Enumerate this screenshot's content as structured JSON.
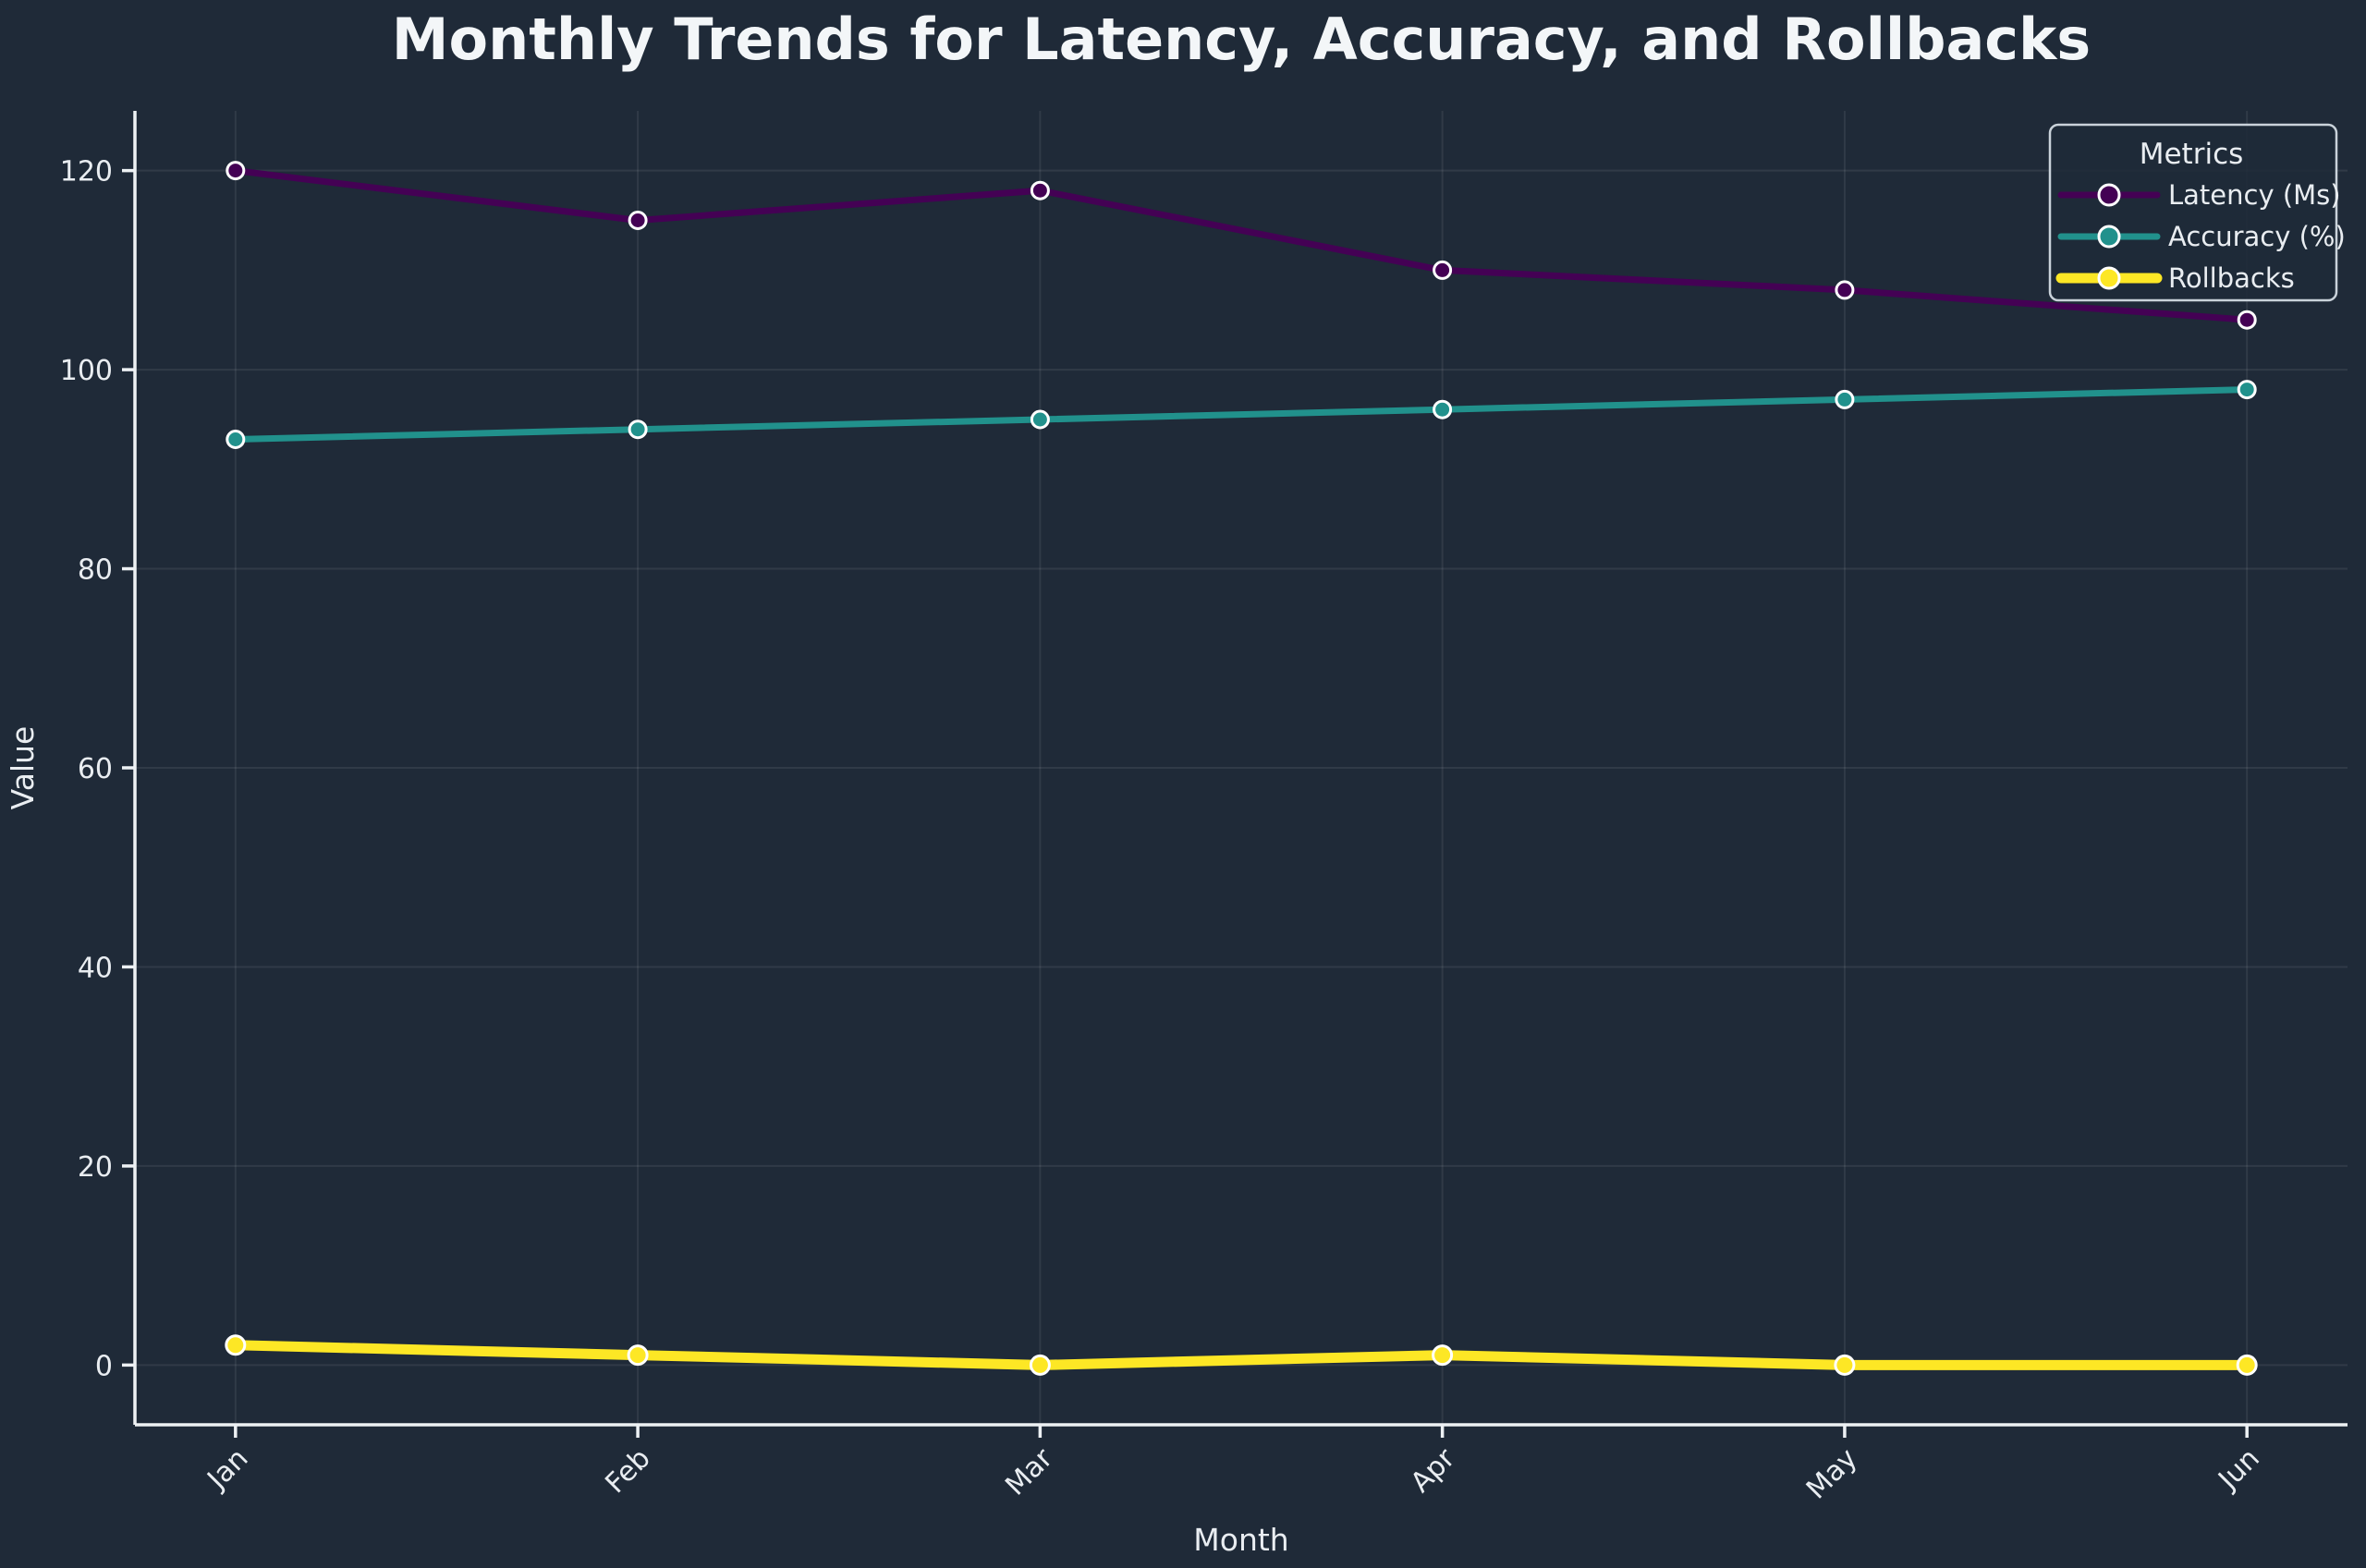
{
  "figure": {
    "background_color": "#1f2a38",
    "text_color": "#e9edf1",
    "title_color": "#f3f6f8",
    "axis_color": "#edf1f4",
    "grid_color": "rgba(255,255,255,0.08)",
    "marker_edge_color": "#ffffff"
  },
  "chart_data": {
    "type": "line",
    "title": "Monthly Trends for Latency, Accuracy, and Rollbacks",
    "xlabel": "Month",
    "ylabel": "Value",
    "categories": [
      "Jan",
      "Feb",
      "Mar",
      "Apr",
      "May",
      "Jun"
    ],
    "series": [
      {
        "name": "Latency (Ms)",
        "color": "#440154",
        "line_width": 7,
        "marker_radius": 9,
        "values": [
          120,
          115,
          118,
          110,
          108,
          105
        ]
      },
      {
        "name": "Accuracy (%)",
        "color": "#21918c",
        "line_width": 7,
        "marker_radius": 9,
        "values": [
          93,
          94,
          95,
          96,
          97,
          98
        ]
      },
      {
        "name": "Rollbacks",
        "color": "#fde725",
        "line_width": 11,
        "marker_radius": 10,
        "values": [
          2,
          1,
          0,
          1,
          0,
          0
        ]
      }
    ],
    "yticks": [
      0,
      20,
      40,
      60,
      80,
      100,
      120
    ],
    "ylim": [
      0,
      120
    ],
    "grid": true,
    "legend": {
      "title": "Metrics",
      "position": "top-right"
    },
    "x_tick_rotation_deg": 45
  }
}
